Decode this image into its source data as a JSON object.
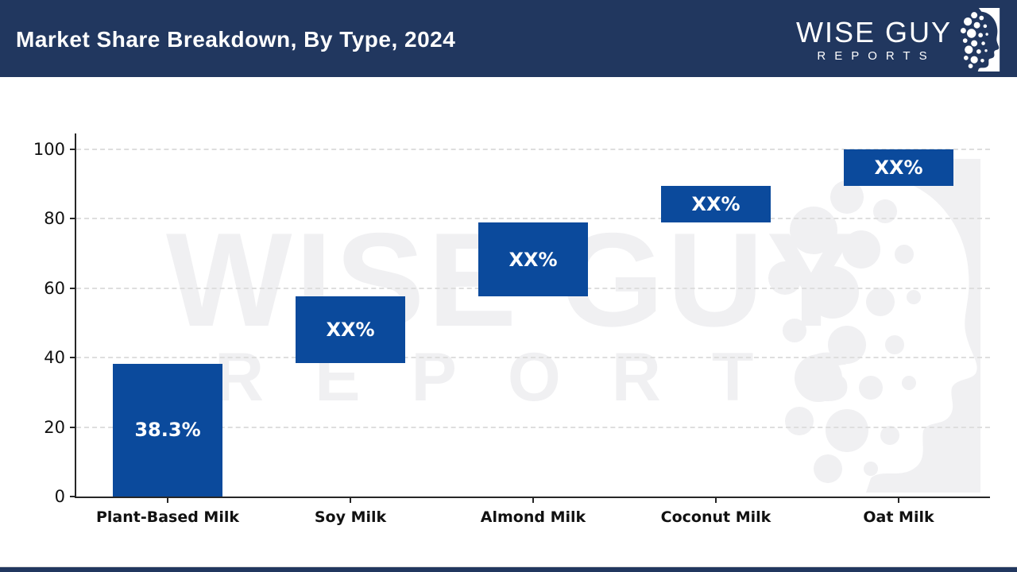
{
  "header": {
    "title": "Market Share Breakdown, By Type, 2024",
    "background_color": "#21375f",
    "logo": {
      "line1": "WISE GUY",
      "line2": "REPORTS"
    }
  },
  "watermark": {
    "line1": "WISE GUY",
    "line2": "REPORTS"
  },
  "chart_data": {
    "type": "bar",
    "variant": "waterfall",
    "title": "Market Share Breakdown, By Type, 2024",
    "categories": [
      "Plant-Based Milk",
      "Soy Milk",
      "Almond Milk",
      "Coconut Milk",
      "Oat Milk"
    ],
    "segments": [
      {
        "category": "Plant-Based Milk",
        "start": 0,
        "end": 38.3,
        "label": "38.3%"
      },
      {
        "category": "Soy Milk",
        "start": 38.3,
        "end": 57.7,
        "label": "XX%"
      },
      {
        "category": "Almond Milk",
        "start": 57.7,
        "end": 78.8,
        "label": "XX%"
      },
      {
        "category": "Coconut Milk",
        "start": 78.8,
        "end": 89.4,
        "label": "XX%"
      },
      {
        "category": "Oat Milk",
        "start": 89.4,
        "end": 100,
        "label": "XX%"
      }
    ],
    "bar_labels": [
      "38.3%",
      "XX%",
      "XX%",
      "XX%",
      "XX%"
    ],
    "xlabel": "",
    "ylabel": "",
    "yticks": [
      0,
      20,
      40,
      60,
      80,
      100
    ],
    "ylim": [
      0,
      104.5
    ],
    "grid": "horizontal-dashed",
    "legend": null,
    "bar_color": "#0b4a9c",
    "bar_label_color": "#ffffff",
    "axis_color": "#262626"
  }
}
